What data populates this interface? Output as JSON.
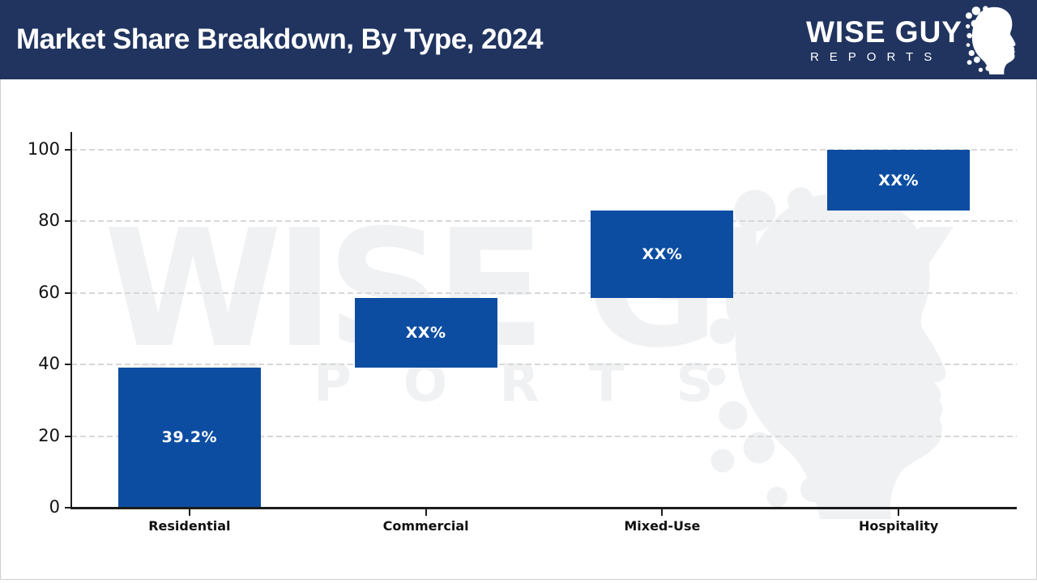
{
  "header": {
    "title": "Market Share Breakdown, By Type, 2024",
    "logo": {
      "word": "WISE GUY",
      "sub": "REPORTS"
    },
    "background_color": "#20345f"
  },
  "watermark": {
    "line1": "WISE GUY",
    "line2": "REPORTS"
  },
  "chart_data": {
    "type": "bar",
    "subtype": "waterfall",
    "title": "Market Share Breakdown, By Type, 2024",
    "categories": [
      "Residential",
      "Commercial",
      "Mixed-Use",
      "Hospitality"
    ],
    "segments": [
      {
        "category": "Residential",
        "start": 0,
        "end": 39.2,
        "label": "39.2%"
      },
      {
        "category": "Commercial",
        "start": 39.2,
        "end": 58.6,
        "label": "XX%"
      },
      {
        "category": "Mixed-Use",
        "start": 58.6,
        "end": 83.0,
        "label": "XX%"
      },
      {
        "category": "Hospitality",
        "start": 83.0,
        "end": 100.0,
        "label": "XX%"
      }
    ],
    "xlabel": "",
    "ylabel": "",
    "ylim": [
      0,
      105
    ],
    "yticks": [
      0,
      20,
      40,
      60,
      80,
      100
    ],
    "grid": "horizontal-dashed",
    "legend": "none",
    "bar_color": "#0c4da2",
    "bar_label_color": "#ffffff",
    "axis_color": "#1c1c1c",
    "gridline_color": "#d8d8d8"
  }
}
